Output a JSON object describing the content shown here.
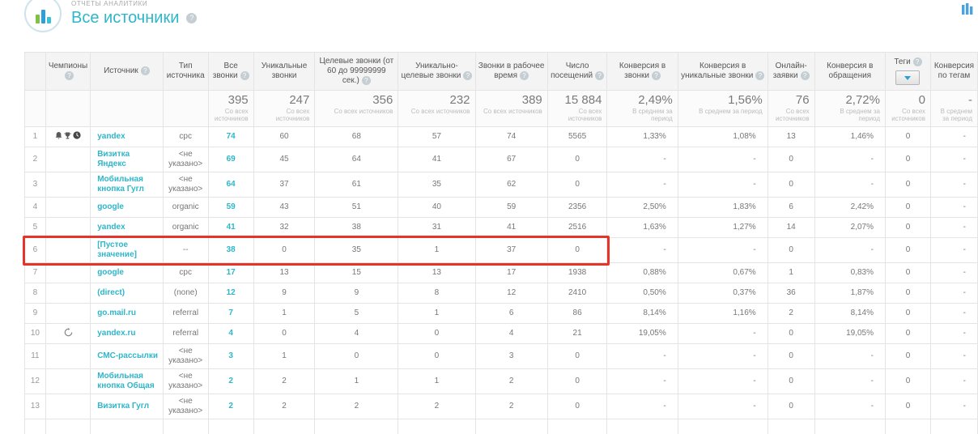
{
  "page": {
    "breadcrumb": "ОТЧЕТЫ АНАЛИТИКИ",
    "title": "Все источники",
    "help": "?"
  },
  "table": {
    "columns": [
      {
        "key": "num",
        "label": ""
      },
      {
        "key": "champions",
        "label": "Чемпионы",
        "help": true
      },
      {
        "key": "source",
        "label": "Источник",
        "help": true
      },
      {
        "key": "type",
        "label": "Тип источника",
        "help": false
      },
      {
        "key": "all_calls",
        "label": "Все звонки",
        "help": true,
        "summary": {
          "value": "395",
          "caption": "Со всех источников"
        }
      },
      {
        "key": "unique_calls",
        "label": "Уникальные звонки",
        "help": false,
        "summary": {
          "value": "247",
          "caption": "Со всех источников"
        }
      },
      {
        "key": "target_calls",
        "label": "Целевые звонки (от 60 до 99999999 сек.)",
        "help": true,
        "summary": {
          "value": "356",
          "caption": "Со всех источников"
        }
      },
      {
        "key": "unique_target",
        "label": "Уникально-целевые звонки",
        "help": true,
        "summary": {
          "value": "232",
          "caption": "Со всех источников"
        }
      },
      {
        "key": "work_time",
        "label": "Звонки в рабочее время",
        "help": true,
        "summary": {
          "value": "389",
          "caption": "Со всех источников"
        }
      },
      {
        "key": "visits",
        "label": "Число посещений",
        "help": true,
        "summary": {
          "value": "15 884",
          "caption": "Со всех источников"
        }
      },
      {
        "key": "conv_calls",
        "label": "Конверсия в звонки",
        "help": true,
        "summary": {
          "value": "2,49%",
          "caption": "В среднем за период"
        }
      },
      {
        "key": "conv_unique",
        "label": "Конверсия в уникальные звонки",
        "help": true,
        "summary": {
          "value": "1,56%",
          "caption": "В среднем за период"
        }
      },
      {
        "key": "online",
        "label": "Онлайн-заявки",
        "help": true,
        "summary": {
          "value": "76",
          "caption": "Со всех источников"
        }
      },
      {
        "key": "conv_appeals",
        "label": "Конверсия в обращения",
        "help": false,
        "summary": {
          "value": "2,72%",
          "caption": "В среднем за период"
        }
      },
      {
        "key": "tags",
        "label": "Теги",
        "help": true,
        "dropdown": true,
        "summary": {
          "value": "0",
          "caption": "Со всех источников"
        }
      },
      {
        "key": "conv_tags",
        "label": "Конверсия по тегам",
        "help": false,
        "summary": {
          "value": "-",
          "caption": "В среднем за период"
        }
      }
    ],
    "rows": [
      {
        "num": "1",
        "champions": [
          "bell",
          "trophy",
          "clock"
        ],
        "source": "yandex",
        "type": "cpc",
        "all_calls": "74",
        "unique_calls": "60",
        "target_calls": "68",
        "unique_target": "57",
        "work_time": "74",
        "visits": "5565",
        "conv_calls": "1,33%",
        "conv_unique": "1,08%",
        "online": "13",
        "conv_appeals": "1,46%",
        "tags": "0",
        "conv_tags": "-",
        "highlighted": false
      },
      {
        "num": "2",
        "champions": [],
        "source": "Визитка Яндекс",
        "type": "<не указано>",
        "all_calls": "69",
        "unique_calls": "45",
        "target_calls": "64",
        "unique_target": "41",
        "work_time": "67",
        "visits": "0",
        "conv_calls": "-",
        "conv_unique": "-",
        "online": "0",
        "conv_appeals": "-",
        "tags": "0",
        "conv_tags": "-",
        "highlighted": false
      },
      {
        "num": "3",
        "champions": [],
        "source": "Мобильная кнопка Гугл",
        "type": "<не указано>",
        "all_calls": "64",
        "unique_calls": "37",
        "target_calls": "61",
        "unique_target": "35",
        "work_time": "62",
        "visits": "0",
        "conv_calls": "-",
        "conv_unique": "-",
        "online": "0",
        "conv_appeals": "-",
        "tags": "0",
        "conv_tags": "-",
        "highlighted": false
      },
      {
        "num": "4",
        "champions": [],
        "source": "google",
        "type": "organic",
        "all_calls": "59",
        "unique_calls": "43",
        "target_calls": "51",
        "unique_target": "40",
        "work_time": "59",
        "visits": "2356",
        "conv_calls": "2,50%",
        "conv_unique": "1,83%",
        "online": "6",
        "conv_appeals": "2,42%",
        "tags": "0",
        "conv_tags": "-",
        "highlighted": false
      },
      {
        "num": "5",
        "champions": [],
        "source": "yandex",
        "type": "organic",
        "all_calls": "41",
        "unique_calls": "32",
        "target_calls": "38",
        "unique_target": "31",
        "work_time": "41",
        "visits": "2516",
        "conv_calls": "1,63%",
        "conv_unique": "1,27%",
        "online": "14",
        "conv_appeals": "2,07%",
        "tags": "0",
        "conv_tags": "-",
        "highlighted": false
      },
      {
        "num": "6",
        "champions": [],
        "source": "[Пустое значение]",
        "type": "--",
        "all_calls": "38",
        "unique_calls": "0",
        "target_calls": "35",
        "unique_target": "1",
        "work_time": "37",
        "visits": "0",
        "conv_calls": "-",
        "conv_unique": "-",
        "online": "0",
        "conv_appeals": "-",
        "tags": "0",
        "conv_tags": "-",
        "highlighted": true
      },
      {
        "num": "7",
        "champions": [],
        "source": "google",
        "type": "cpc",
        "all_calls": "17",
        "unique_calls": "13",
        "target_calls": "15",
        "unique_target": "13",
        "work_time": "17",
        "visits": "1938",
        "conv_calls": "0,88%",
        "conv_unique": "0,67%",
        "online": "1",
        "conv_appeals": "0,83%",
        "tags": "0",
        "conv_tags": "-",
        "highlighted": false
      },
      {
        "num": "8",
        "champions": [],
        "source": "(direct)",
        "type": "(none)",
        "all_calls": "12",
        "unique_calls": "9",
        "target_calls": "9",
        "unique_target": "8",
        "work_time": "12",
        "visits": "2410",
        "conv_calls": "0,50%",
        "conv_unique": "0,37%",
        "online": "36",
        "conv_appeals": "1,87%",
        "tags": "0",
        "conv_tags": "-",
        "highlighted": false
      },
      {
        "num": "9",
        "champions": [],
        "source": "go.mail.ru",
        "type": "referral",
        "all_calls": "7",
        "unique_calls": "1",
        "target_calls": "5",
        "unique_target": "1",
        "work_time": "6",
        "visits": "86",
        "conv_calls": "8,14%",
        "conv_unique": "1,16%",
        "online": "2",
        "conv_appeals": "8,14%",
        "tags": "0",
        "conv_tags": "-",
        "highlighted": false
      },
      {
        "num": "10",
        "champions": [
          "refresh"
        ],
        "source": "yandex.ru",
        "type": "referral",
        "all_calls": "4",
        "unique_calls": "0",
        "target_calls": "4",
        "unique_target": "0",
        "work_time": "4",
        "visits": "21",
        "conv_calls": "19,05%",
        "conv_unique": "-",
        "online": "0",
        "conv_appeals": "19,05%",
        "tags": "0",
        "conv_tags": "-",
        "highlighted": false
      },
      {
        "num": "11",
        "champions": [],
        "source": "СМС-рассылки",
        "type": "<не указано>",
        "all_calls": "3",
        "unique_calls": "1",
        "target_calls": "0",
        "unique_target": "0",
        "work_time": "3",
        "visits": "0",
        "conv_calls": "-",
        "conv_unique": "-",
        "online": "0",
        "conv_appeals": "-",
        "tags": "0",
        "conv_tags": "-",
        "highlighted": false
      },
      {
        "num": "12",
        "champions": [],
        "source": "Мобильная кнопка Общая",
        "type": "<не указано>",
        "all_calls": "2",
        "unique_calls": "2",
        "target_calls": "1",
        "unique_target": "1",
        "work_time": "2",
        "visits": "0",
        "conv_calls": "-",
        "conv_unique": "-",
        "online": "0",
        "conv_appeals": "-",
        "tags": "0",
        "conv_tags": "-",
        "highlighted": false
      },
      {
        "num": "13",
        "champions": [],
        "source": "Визитка Гугл",
        "type": "<не указано>",
        "all_calls": "2",
        "unique_calls": "2",
        "target_calls": "2",
        "unique_target": "2",
        "work_time": "2",
        "visits": "0",
        "conv_calls": "-",
        "conv_unique": "-",
        "online": "0",
        "conv_appeals": "-",
        "tags": "0",
        "conv_tags": "-",
        "highlighted": false
      }
    ]
  }
}
